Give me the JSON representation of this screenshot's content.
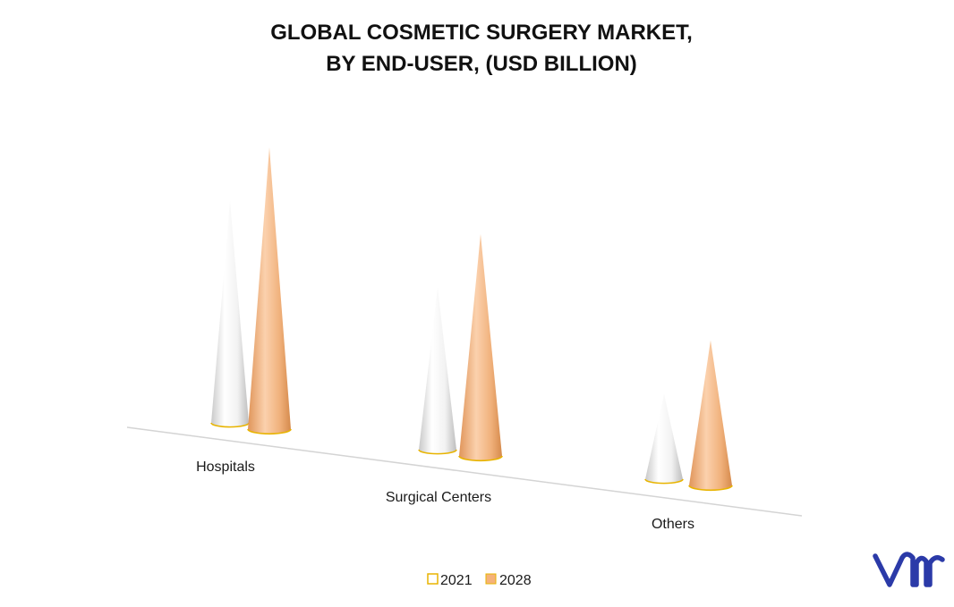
{
  "chart_data": {
    "type": "bar",
    "subtype": "3d-cone",
    "title_lines": [
      "GLOBAL COSMETIC SURGERY MARKET,",
      "BY END-USER, (USD BILLION)"
    ],
    "categories": [
      "Hospitals",
      "Surgical Centers",
      "Others"
    ],
    "series": [
      {
        "name": "2021",
        "values": [
          26,
          19,
          10
        ],
        "color": "#ffffff",
        "outline": "#e8b400"
      },
      {
        "name": "2028",
        "values": [
          33,
          26,
          17
        ],
        "color": "#f5b27a",
        "outline": "#e8b400"
      }
    ],
    "ylim": [
      0,
      35
    ],
    "grid": false,
    "y_axis_visible": false,
    "legend_position": "bottom-center"
  },
  "logo": {
    "text": "vmr",
    "color": "#2b3aa8"
  }
}
